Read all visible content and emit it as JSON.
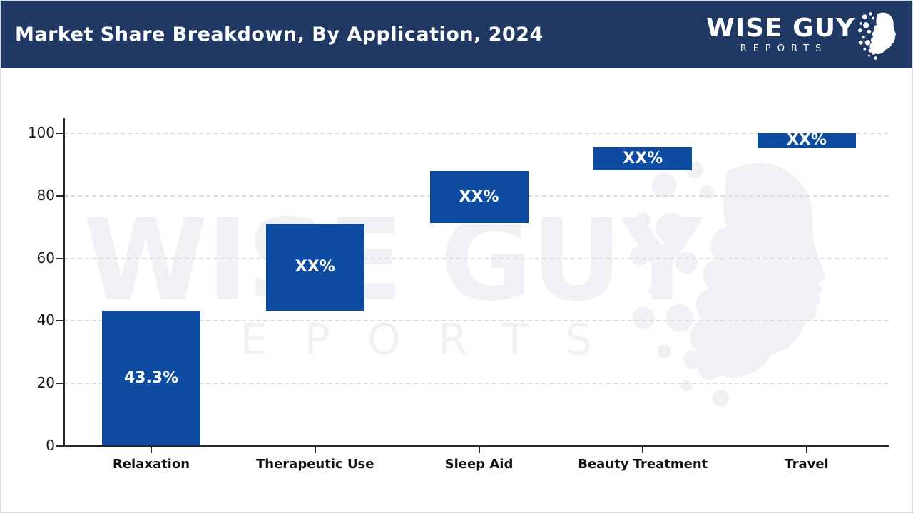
{
  "header": {
    "title": "Market Share Breakdown, By Application, 2024",
    "logo": {
      "line1": "WISE GUY",
      "line2": "REPORTS"
    }
  },
  "watermark": {
    "line1": "WISE GUY",
    "line2": "REPORTS"
  },
  "colors": {
    "header_bg": "#1f3864",
    "bar": "#0d4ba1",
    "bar_label": "#ffffff",
    "grid": "#dcdcdc",
    "axis": "#262626",
    "watermark": "#f0f1f4"
  },
  "chart_data": {
    "type": "bar",
    "subtype": "waterfall",
    "title": "Market Share Breakdown, By Application, 2024",
    "categories": [
      "Relaxation",
      "Therapeutic Use",
      "Sleep Aid",
      "Beauty Treatment",
      "Travel"
    ],
    "segments": [
      {
        "category": "Relaxation",
        "start": 0,
        "end": 43.3,
        "label": "43.3%"
      },
      {
        "category": "Therapeutic Use",
        "start": 43.3,
        "end": 71.1,
        "label": "XX%"
      },
      {
        "category": "Sleep Aid",
        "start": 71.2,
        "end": 88.0,
        "label": "XX%"
      },
      {
        "category": "Beauty Treatment",
        "start": 88.2,
        "end": 95.5,
        "label": "XX%"
      },
      {
        "category": "Travel",
        "start": 95.3,
        "end": 100.0,
        "label": "XX%"
      }
    ],
    "yticks": [
      0,
      20,
      40,
      60,
      80,
      100
    ],
    "ylim": [
      0,
      105
    ],
    "xlabel": "",
    "ylabel": "",
    "grid": "dashed-horizontal",
    "legend": "none"
  }
}
